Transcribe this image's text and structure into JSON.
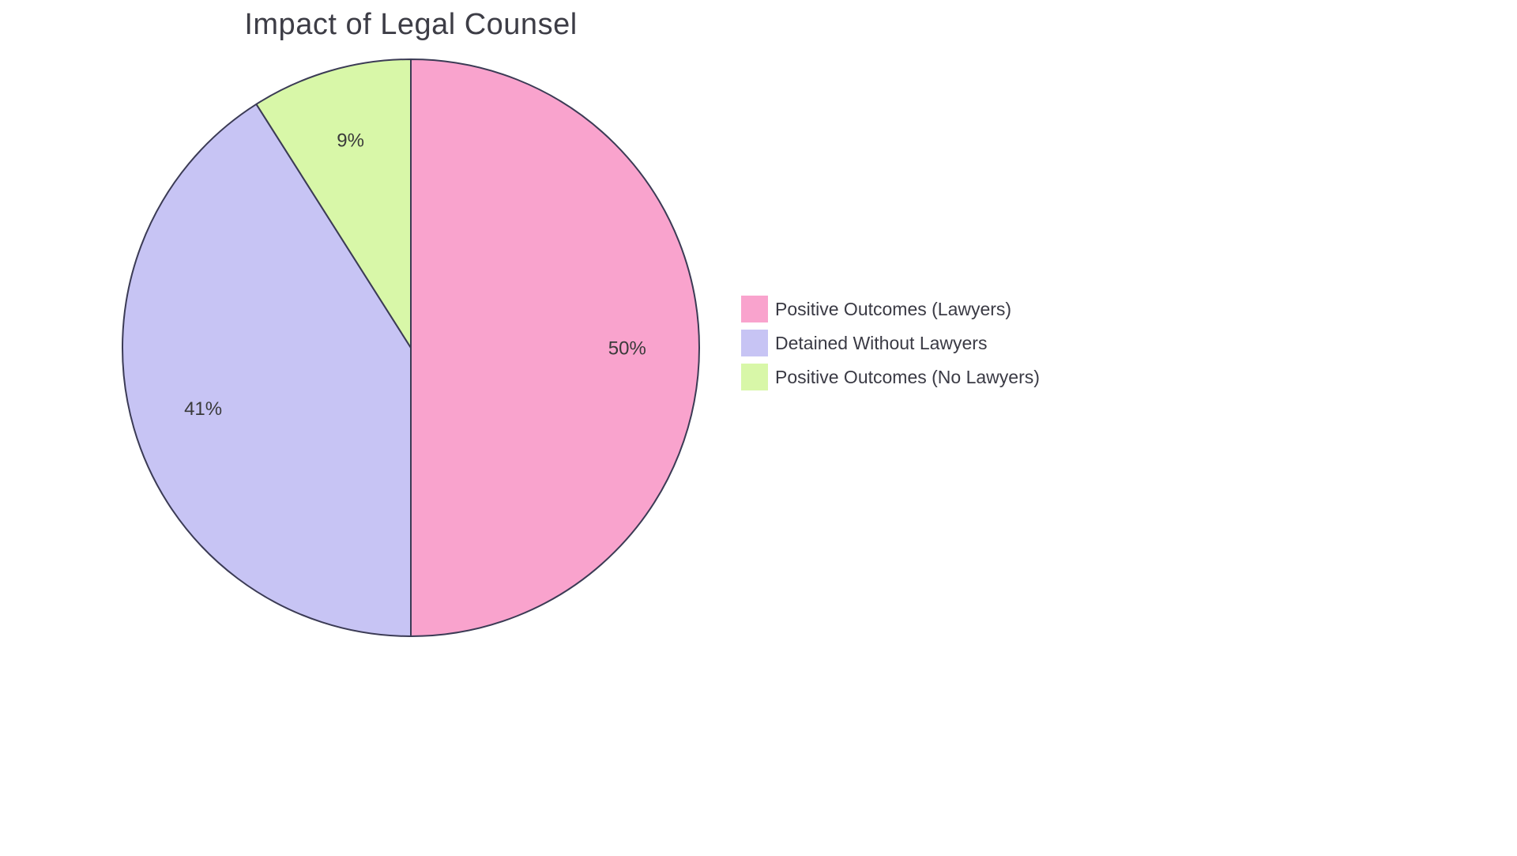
{
  "chart_data": {
    "type": "pie",
    "title": "Impact of Legal Counsel",
    "labels": [
      "Positive Outcomes (Lawyers)",
      "Detained Without Lawyers",
      "Positive Outcomes (No Lawyers)"
    ],
    "values": [
      50,
      41,
      9
    ],
    "value_labels": [
      "50%",
      "41%",
      "9%"
    ],
    "colors": [
      "#f9a3cd",
      "#c7c4f4",
      "#d8f7a8"
    ],
    "slice_stroke": "#3b3b55",
    "start_angle_deg": 0,
    "direction": "clockwise",
    "legend_position": "right",
    "background": "#ffffff"
  }
}
